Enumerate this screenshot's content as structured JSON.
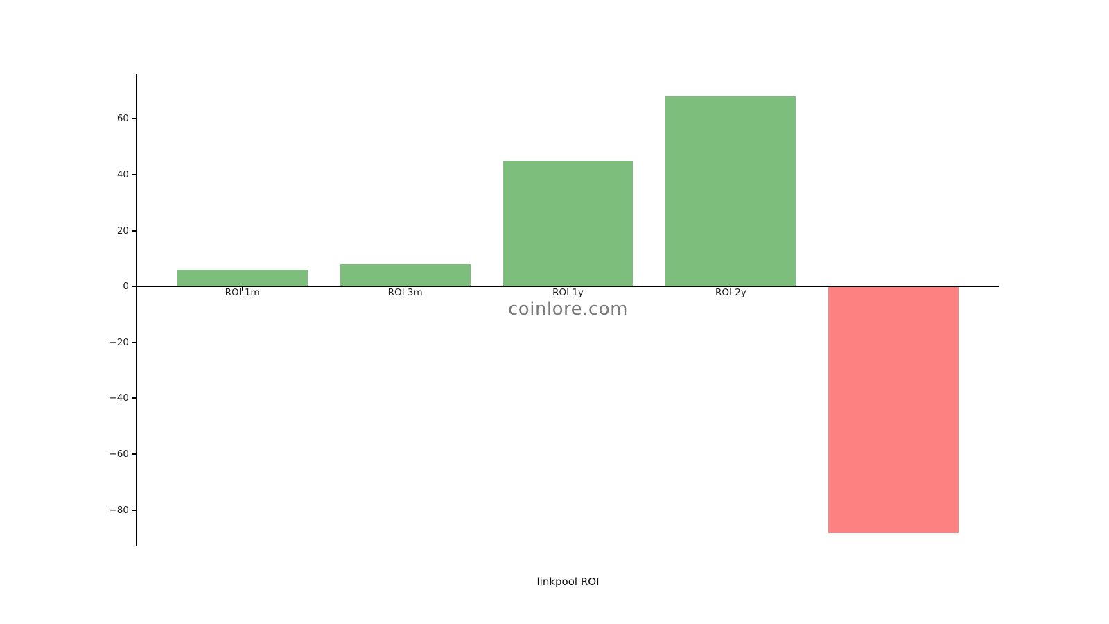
{
  "page": {
    "background_color": "#ffffff"
  },
  "chart_data": {
    "type": "bar",
    "title": "linkpool ROI",
    "watermark": "coinlore.com",
    "categories": [
      "ROI 1m",
      "ROI 3m",
      "ROI 1y",
      "ROI 2y",
      ""
    ],
    "values": [
      6,
      8,
      45,
      68,
      -88
    ],
    "series": [
      {
        "name": "linkpool ROI",
        "values": [
          6,
          8,
          45,
          68,
          -88
        ]
      }
    ],
    "positive_color": "#7dbe7c",
    "negative_color": "#fe8181",
    "axis_color": "#000000",
    "tick_label_color": "#1a1a1a",
    "watermark_color": "#7a7a7a",
    "yticks": [
      60,
      40,
      20,
      0,
      -20,
      -40,
      -60,
      -80
    ],
    "ylim": [
      -93,
      76
    ],
    "xlabel": "",
    "ylabel": "",
    "grid": false,
    "legend": false,
    "bar_width_ratio": 0.8
  }
}
